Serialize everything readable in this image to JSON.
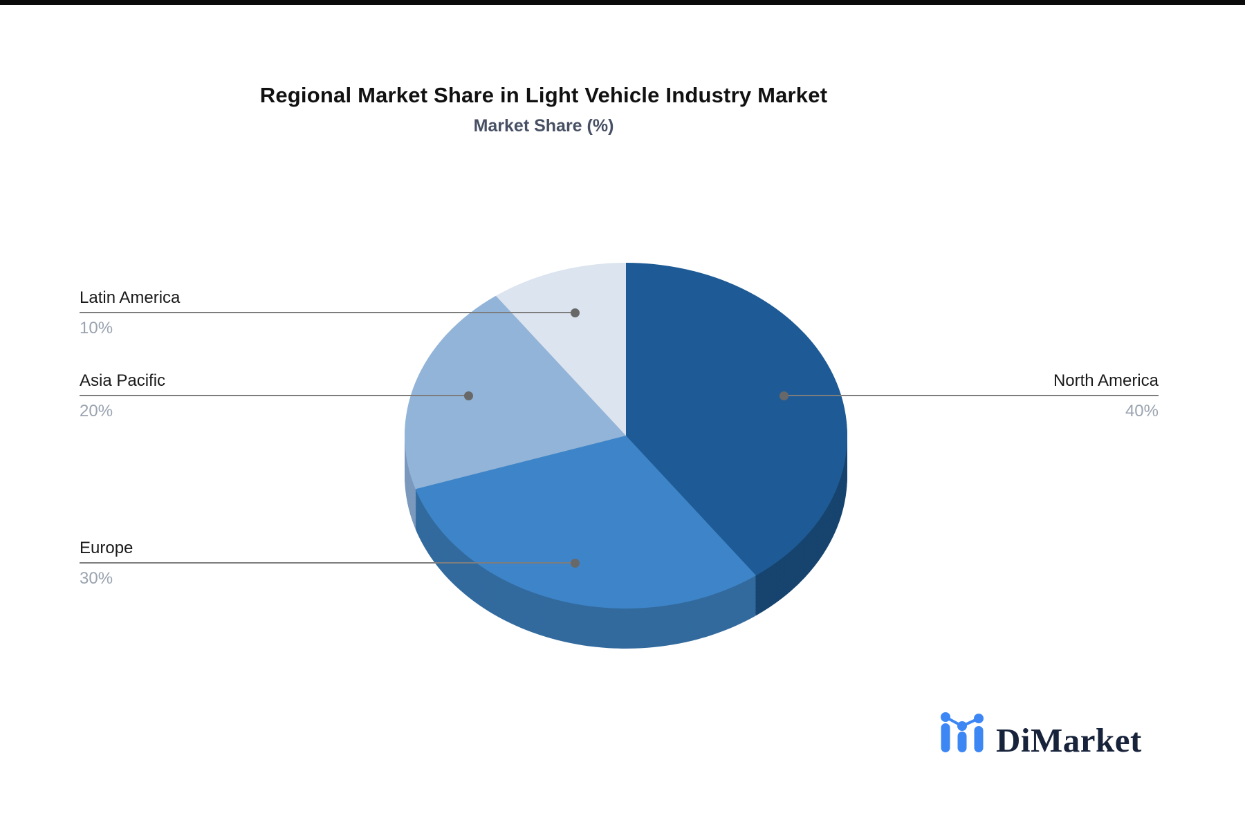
{
  "chart_data": {
    "type": "pie",
    "title": "Regional Market Share in Light Vehicle Industry Market",
    "subtitle": "Market Share (%)",
    "unit": "%",
    "style": "3d",
    "start_angle": "12-oclock",
    "direction": "clockwise",
    "legend": "none",
    "labels_shown_as": "callouts-with-leader-lines",
    "slices": [
      {
        "label": "North America",
        "value": 40,
        "display": "40%",
        "color": "#1e5b96",
        "side_color": "#17446e",
        "label_side": "right"
      },
      {
        "label": "Europe",
        "value": 30,
        "display": "30%",
        "color": "#3d85c8",
        "side_color": "#326a9e",
        "label_side": "left"
      },
      {
        "label": "Asia Pacific",
        "value": 20,
        "display": "20%",
        "color": "#92b4d8",
        "side_color": "#7b99bd",
        "label_side": "left"
      },
      {
        "label": "Latin America",
        "value": 10,
        "display": "10%",
        "color": "#dce4ef",
        "side_color": "#b3c1d4",
        "label_side": "left"
      }
    ]
  },
  "colors": {
    "background": "#ffffff",
    "top_bar": "#0a0a0a",
    "title_text": "#111111",
    "subtitle_text": "#475063",
    "label_text": "#1a1a1a",
    "value_text": "#9aa3b0",
    "leader_line": "#7d7d7d",
    "leader_dot": "#686868"
  },
  "branding": {
    "name": "DiMarket",
    "icon": "bar-line-chart-icon",
    "icon_color": "#3d87f5",
    "text_color": "#17223b"
  }
}
